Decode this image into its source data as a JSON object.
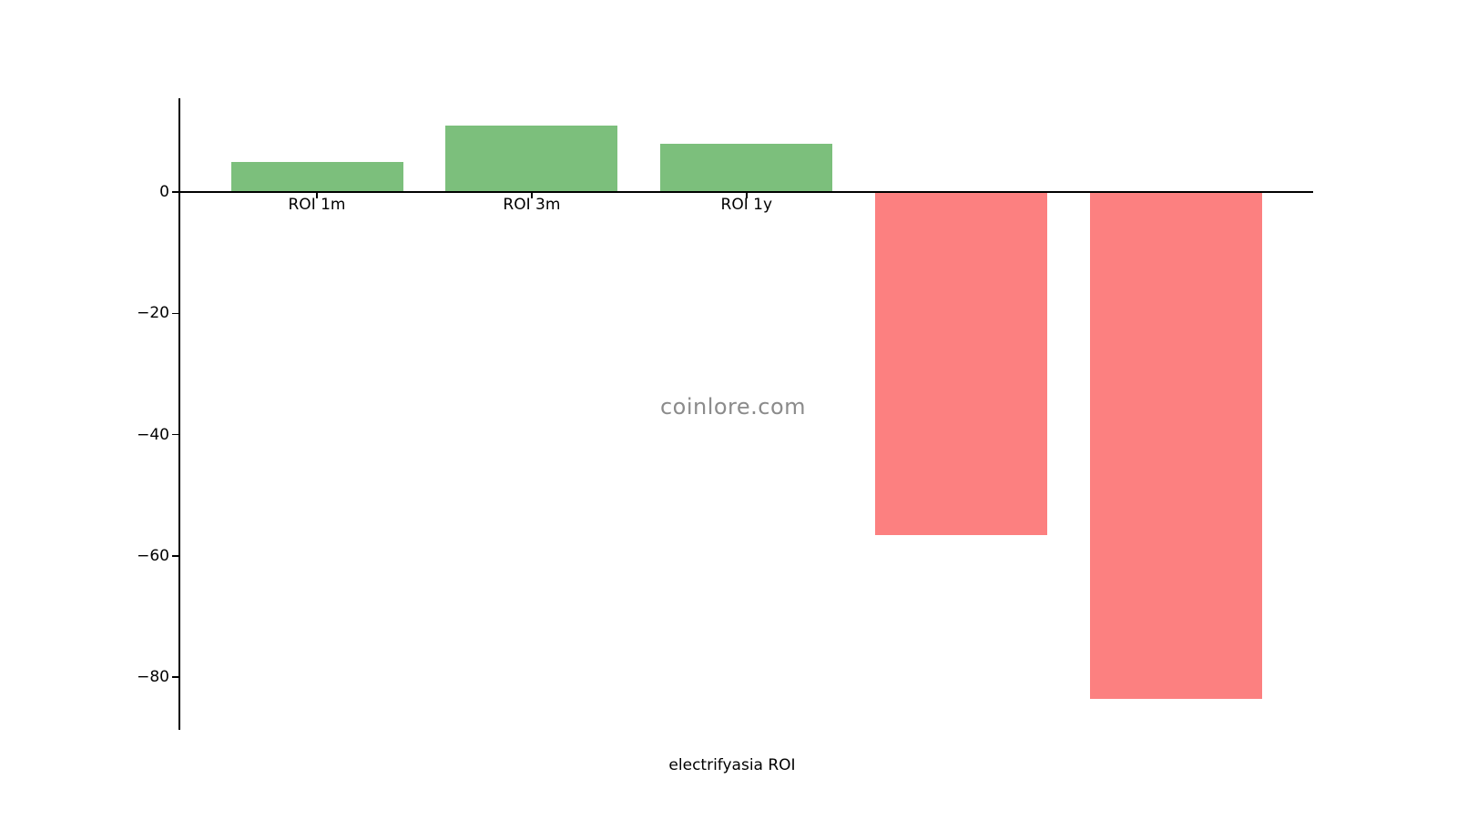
{
  "page": {
    "background": "#ffffff"
  },
  "chart_data": {
    "type": "bar",
    "title": "",
    "xlabel": "electrifyasia ROI",
    "watermark": "coinlore.com",
    "categories": [
      "ROI 1m",
      "ROI 3m",
      "ROI 1y",
      "",
      ""
    ],
    "values": [
      5.0,
      11.0,
      8.0,
      -56.6,
      -83.6
    ],
    "positive_color": "#7cbf7c",
    "negative_color": "#fc8080",
    "axis_color": "#000000",
    "tick_label_color": "#000000",
    "watermark_color": "#8b8b8b",
    "yticks": [
      0,
      -20,
      -40,
      -60,
      -80
    ],
    "ytick_labels": [
      "0",
      "−20",
      "−40",
      "−60",
      "−80"
    ],
    "ylim": [
      -88.7,
      15.5
    ],
    "grid": false,
    "legend": "none"
  }
}
